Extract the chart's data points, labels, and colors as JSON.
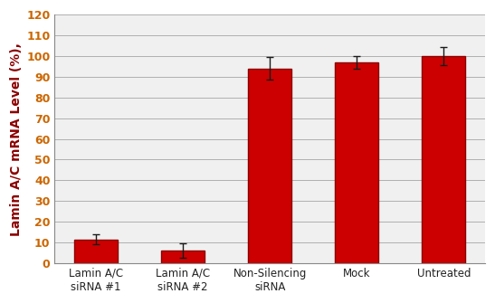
{
  "categories": [
    "Lamin A/C\nsiRNA #1",
    "Lamin A/C\nsiRNA #2",
    "Non-Silencing\nsiRNA",
    "Mock",
    "Untreated"
  ],
  "values": [
    11.5,
    6.0,
    94.0,
    97.0,
    100.0
  ],
  "errors": [
    2.5,
    3.5,
    5.5,
    3.0,
    4.5
  ],
  "bar_color": "#CC0000",
  "bar_edge_color": "#8B0000",
  "error_color": "#1a1a1a",
  "ylabel": "Lamin A/C mRNA Level (%),",
  "ylim": [
    0,
    120
  ],
  "yticks": [
    0,
    10,
    20,
    30,
    40,
    50,
    60,
    70,
    80,
    90,
    100,
    110,
    120
  ],
  "grid_color": "#b0b0b0",
  "background_color": "#ffffff",
  "plot_bg_color": "#f0f0f0",
  "bar_width": 0.5,
  "ylabel_fontsize": 10,
  "tick_fontsize": 9,
  "xlabel_fontsize": 8.5,
  "ytick_color": "#CC6600",
  "xlabel_color": "#222222",
  "ylabel_color": "#8B0000"
}
